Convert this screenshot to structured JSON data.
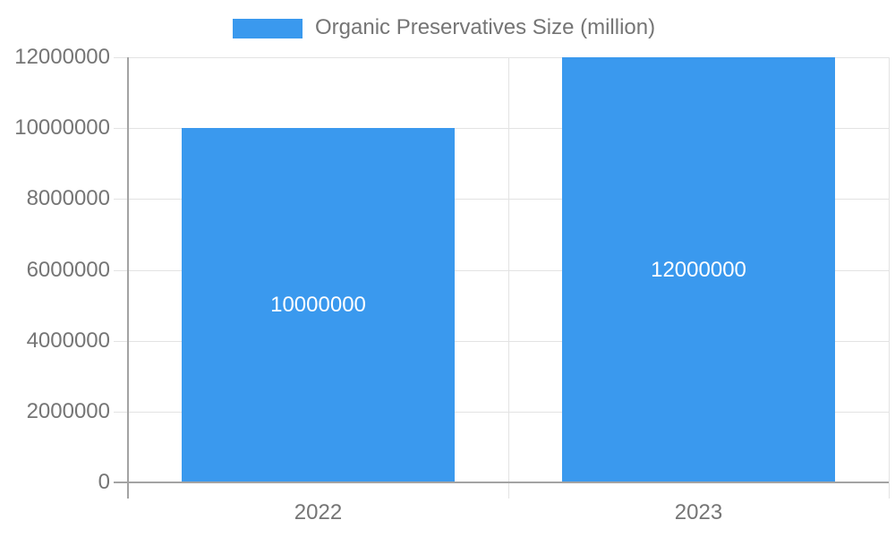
{
  "legend": {
    "label": "Organic Preservatives Size (million)",
    "position": "top"
  },
  "chart_data": {
    "type": "bar",
    "title": "Organic Preservatives Size (million)",
    "categories": [
      "2022",
      "2023"
    ],
    "series": [
      {
        "name": "Organic Preservatives Size (million)",
        "values": [
          10000000,
          12000000
        ]
      }
    ],
    "bar_labels": [
      "10000000",
      "12000000"
    ],
    "xlabel": "",
    "ylabel": "",
    "ylim": [
      0,
      12000000
    ],
    "yticks": [
      0,
      2000000,
      4000000,
      6000000,
      8000000,
      10000000,
      12000000
    ],
    "grid": true,
    "legend_position": "top",
    "colors": {
      "bar": "#3a99ee",
      "bar_label_text": "#ffffff",
      "axis_text": "#757575",
      "gridline": "#e3e3e3",
      "axis_line": "#a3a3a3",
      "background": "#ffffff"
    }
  }
}
